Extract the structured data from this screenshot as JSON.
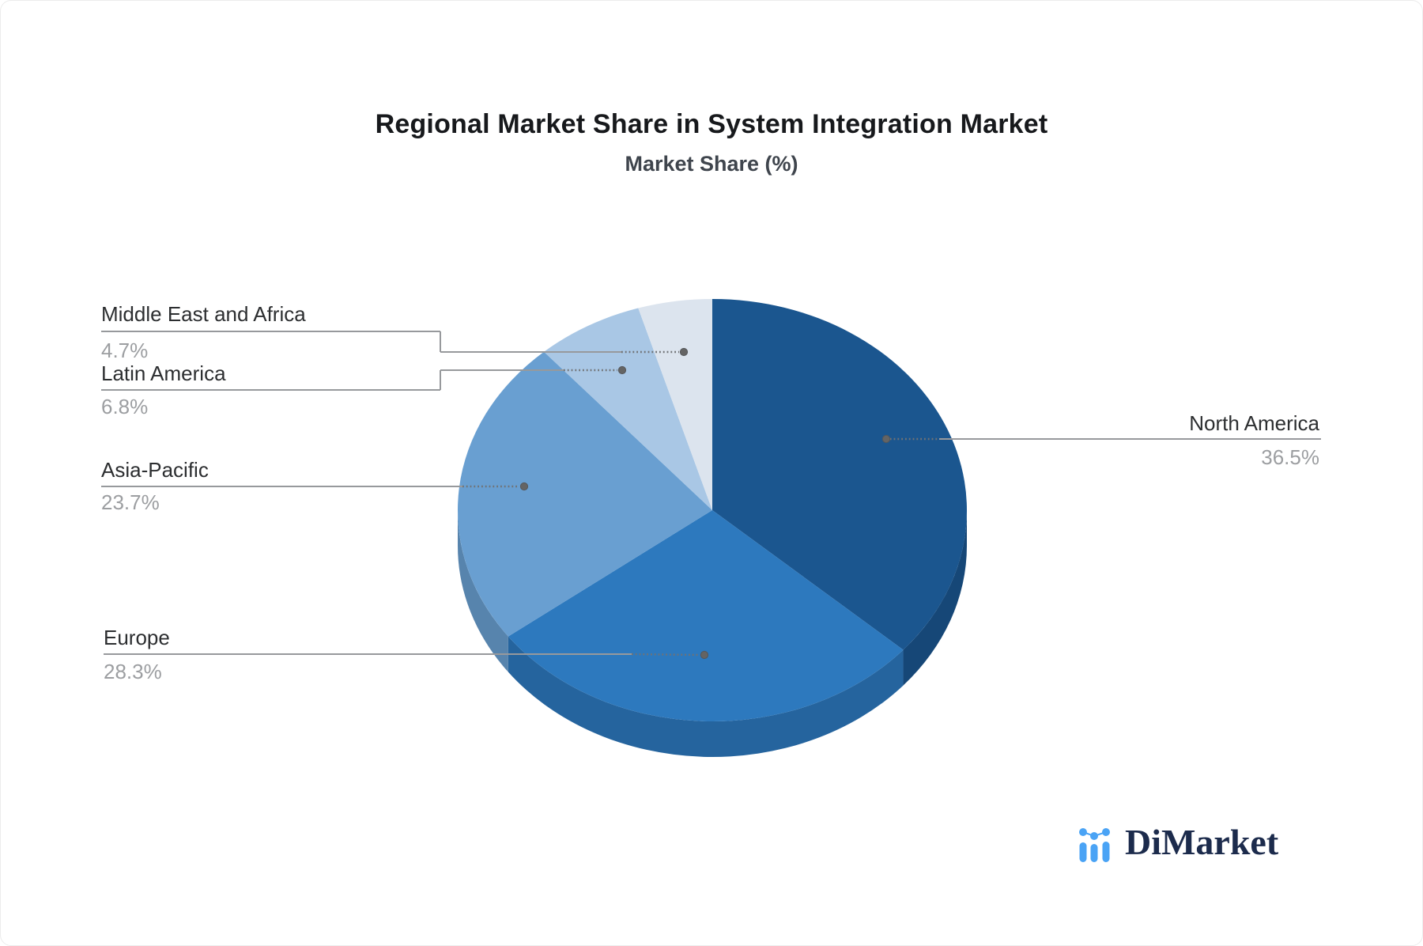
{
  "title": "Regional Market Share in System Integration Market",
  "subtitle": "Market Share (%)",
  "watermark": {
    "brand": "DiMarket"
  },
  "chart_data": {
    "type": "pie",
    "style": "3d-pie",
    "title": "Regional Market Share in System Integration Market",
    "subtitle": "Market Share (%)",
    "unit": "%",
    "total": 100,
    "start_angle_deg": 0,
    "direction": "clockwise",
    "legend_position": "none",
    "label_style": "callout-leader-lines",
    "segments": [
      {
        "label": "North America",
        "value": 36.5,
        "pct_label": "36.5%",
        "color": "#1b568f"
      },
      {
        "label": "Europe",
        "value": 28.3,
        "pct_label": "28.3%",
        "color": "#2d79be"
      },
      {
        "label": "Asia-Pacific",
        "value": 23.7,
        "pct_label": "23.7%",
        "color": "#699fd1"
      },
      {
        "label": "Latin America",
        "value": 6.8,
        "pct_label": "6.8%",
        "color": "#a9c7e5"
      },
      {
        "label": "Middle East and Africa",
        "value": 4.7,
        "pct_label": "4.7%",
        "color": "#dce4ee"
      }
    ],
    "colors": {
      "label_text": "#2c2e30",
      "pct_text": "#9c9ea1",
      "leader_line": "#97999c",
      "leader_dot": "#646464",
      "title_text": "#17191c",
      "subtitle_text": "#3f454d",
      "brand_blue": "#4aa3f5",
      "brand_navy": "#1c2b4c"
    }
  }
}
